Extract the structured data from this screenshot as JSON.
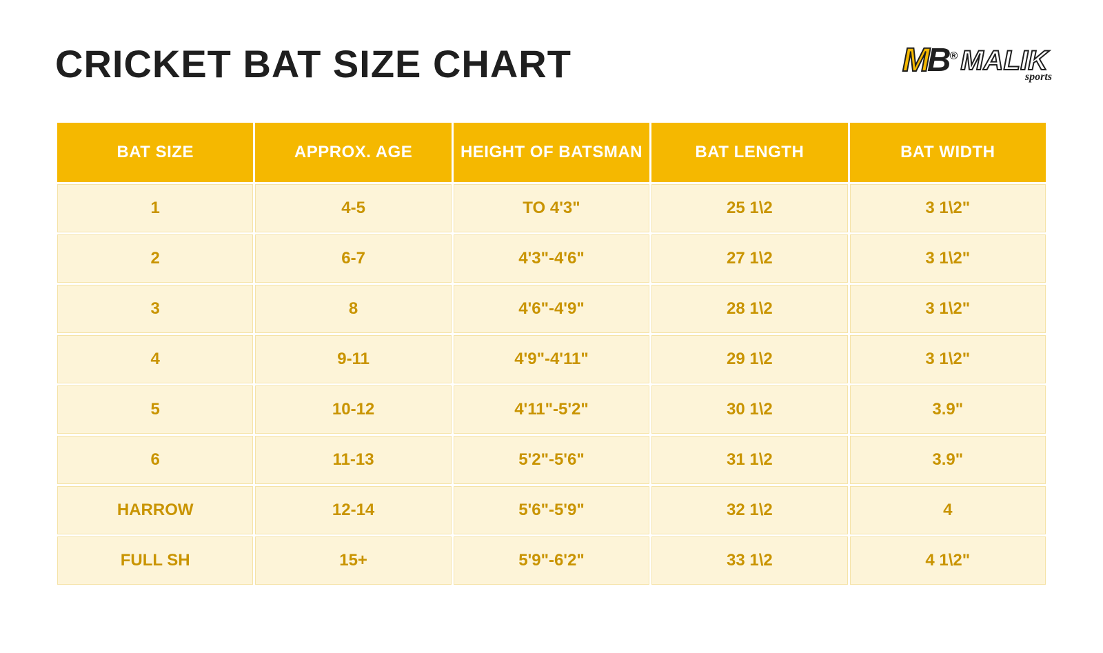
{
  "title": "CRICKET BAT SIZE CHART",
  "logo": {
    "m": "M",
    "b": "B",
    "reg": "®",
    "malik": "MALIK",
    "sports": "sports"
  },
  "table": {
    "header_bg": "#f5b800",
    "header_text_color": "#ffffff",
    "cell_bg": "#fdf4d8",
    "cell_text_color": "#c99400",
    "cell_border_color": "#f5e3a8",
    "header_fontsize": 24,
    "cell_fontsize": 24,
    "columns": [
      "BAT SIZE",
      "APPROX. AGE",
      "HEIGHT OF BATSMAN",
      "BAT LENGTH",
      "BAT WIDTH"
    ],
    "rows": [
      [
        "1",
        "4-5",
        "TO 4'3\"",
        "25 1\\2",
        "3 1\\2\""
      ],
      [
        "2",
        "6-7",
        "4'3\"-4'6\"",
        "27 1\\2",
        "3 1\\2\""
      ],
      [
        "3",
        "8",
        "4'6\"-4'9\"",
        "28 1\\2",
        "3 1\\2\""
      ],
      [
        "4",
        "9-11",
        "4'9\"-4'11\"",
        "29 1\\2",
        "3 1\\2\""
      ],
      [
        "5",
        "10-12",
        "4'11\"-5'2\"",
        "30 1\\2",
        "3.9\""
      ],
      [
        "6",
        "11-13",
        "5'2\"-5'6\"",
        "31 1\\2",
        "3.9\""
      ],
      [
        "HARROW",
        "12-14",
        "5'6\"-5'9\"",
        "32 1\\2",
        "4"
      ],
      [
        "FULL SH",
        "15+",
        "5'9\"-6'2\"",
        "33 1\\2",
        "4 1\\2\""
      ]
    ]
  }
}
